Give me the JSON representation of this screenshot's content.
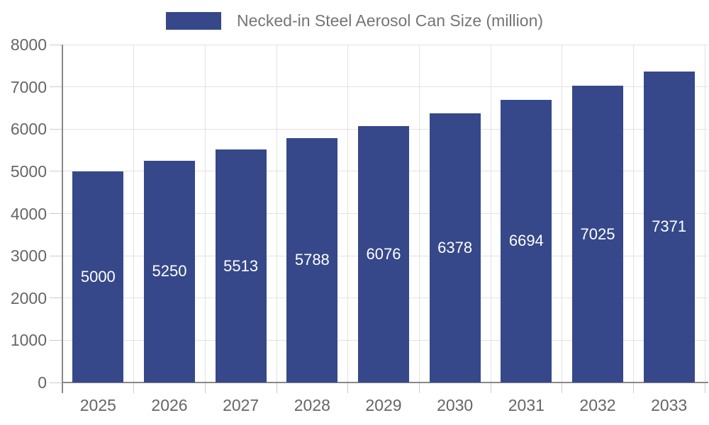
{
  "legend": {
    "label": "Necked-in Steel Aerosol Can Size (million)"
  },
  "chart_data": {
    "type": "bar",
    "title": "",
    "xlabel": "",
    "ylabel": "",
    "categories": [
      "2025",
      "2026",
      "2027",
      "2028",
      "2029",
      "2030",
      "2031",
      "2032",
      "2033"
    ],
    "values": [
      5000,
      5250,
      5513,
      5788,
      6076,
      6378,
      6694,
      7025,
      7371
    ],
    "data_labels": [
      "5000",
      "5250",
      "5513",
      "5788",
      "6076",
      "6378",
      "6694",
      "7025",
      "7371"
    ],
    "series": [
      {
        "name": "Necked-in Steel Aerosol Can Size (million)",
        "values": [
          5000,
          5250,
          5513,
          5788,
          6076,
          6378,
          6694,
          7025,
          7371
        ]
      }
    ],
    "ylim": [
      0,
      8000
    ],
    "yticks": [
      0,
      1000,
      2000,
      3000,
      4000,
      5000,
      6000,
      7000,
      8000
    ],
    "ytick_labels": [
      "0",
      "1000",
      "2000",
      "3000",
      "4000",
      "5000",
      "6000",
      "7000",
      "8000"
    ],
    "grid": true,
    "legend_position": "top-center",
    "colors": {
      "bar": "#36488A",
      "bar_label": "#FFFFFF",
      "axis_line": "#888888",
      "tick_line": "#CCCCCC",
      "gridline": "#E2E2E2",
      "axis_label": "#666666",
      "legend_text": "#757575"
    }
  }
}
